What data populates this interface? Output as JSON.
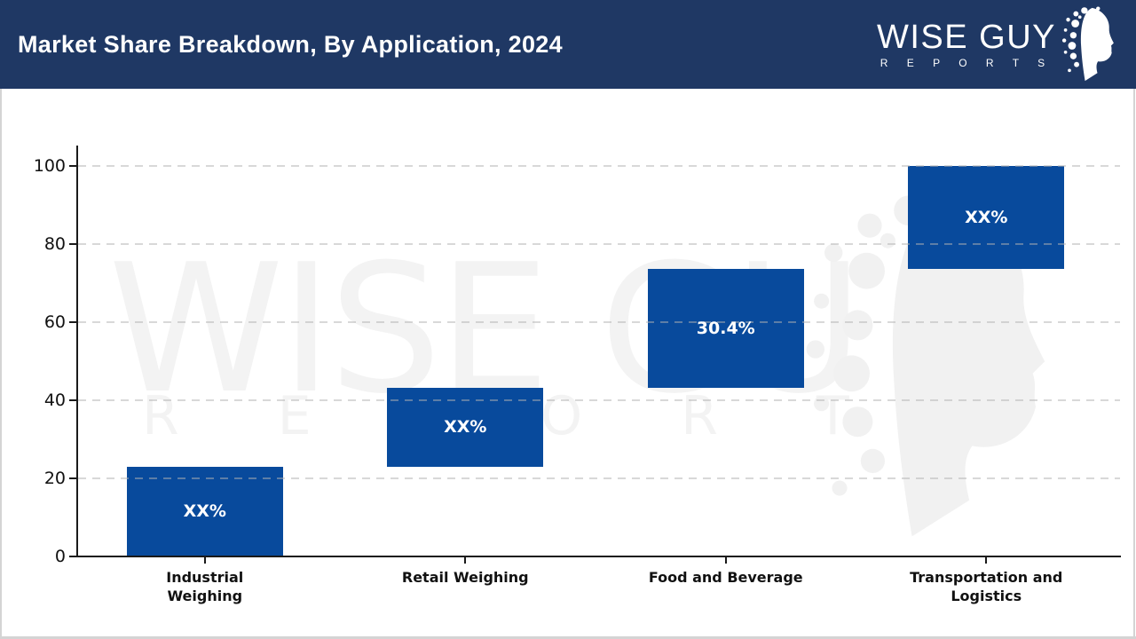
{
  "header": {
    "title": "Market Share Breakdown, By Application, 2024",
    "logo": {
      "name": "WISE GUY",
      "tagline": "R E P O R T S"
    }
  },
  "watermark": {
    "line1": "WISE GU",
    "line2": "R E P O R T S"
  },
  "chart_data": {
    "type": "bar",
    "subtype": "waterfall-stacked-segments",
    "title": "Market Share Breakdown, By Application, 2024",
    "categories": [
      "Industrial Weighing",
      "Retail Weighing",
      "Food and Beverage",
      "Transportation and Logistics"
    ],
    "category_lines": [
      [
        "Industrial",
        "Weighing"
      ],
      [
        "Retail Weighing"
      ],
      [
        "Food and Beverage"
      ],
      [
        "Transportation and",
        "Logistics"
      ]
    ],
    "segments": [
      {
        "category": "Industrial Weighing",
        "start": 0,
        "end": 23,
        "height": 23,
        "label": "XX%"
      },
      {
        "category": "Retail Weighing",
        "start": 23,
        "end": 43.2,
        "height": 20.2,
        "label": "XX%"
      },
      {
        "category": "Food and Beverage",
        "start": 43.2,
        "end": 73.6,
        "height": 30.4,
        "label": "30.4%"
      },
      {
        "category": "Transportation and Logistics",
        "start": 73.6,
        "end": 100,
        "height": 26.4,
        "label": "XX%"
      }
    ],
    "yticks": [
      0,
      20,
      40,
      60,
      80,
      100
    ],
    "ylim": [
      0,
      105
    ],
    "xlabel": "",
    "ylabel": "",
    "legend": "none",
    "grid": "horizontal-dashed",
    "bar_color": "#084a9c",
    "value_label_color": "#ffffff"
  },
  "colors": {
    "header_bg": "#1f3864",
    "bar": "#084a9c",
    "axis": "#1a1a1a",
    "grid_dash": "#e2e2e2",
    "watermark": "#f3f3f3",
    "page_border": "#d4d4d4"
  }
}
